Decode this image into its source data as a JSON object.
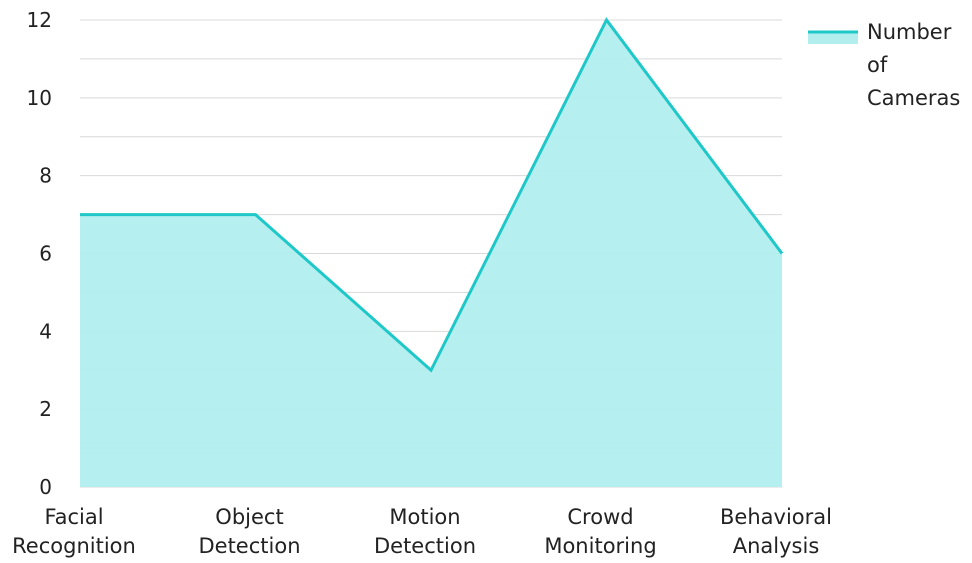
{
  "chart_data": {
    "type": "area",
    "categories": [
      "Facial Recognition",
      "Object Detection",
      "Motion Detection",
      "Crowd Monitoring",
      "Behavioral Analysis"
    ],
    "category_lines": [
      [
        "Facial",
        "Recognition"
      ],
      [
        "Object",
        "Detection"
      ],
      [
        "Motion",
        "Detection"
      ],
      [
        "Crowd",
        "Monitoring"
      ],
      [
        "Behavioral",
        "Analysis"
      ]
    ],
    "series": [
      {
        "name": "Number of Cameras",
        "name_lines": [
          "Number",
          "of",
          "Cameras"
        ],
        "values": [
          7,
          7,
          3,
          12,
          6
        ]
      }
    ],
    "ylim": [
      0,
      12
    ],
    "yticks": [
      0,
      2,
      4,
      6,
      8,
      10,
      12
    ],
    "grid": true,
    "legend": "top-right",
    "colors": {
      "line": "#1fc8c8",
      "fill": "#b2eeee",
      "grid": "#d9d9d9",
      "text": "#222222"
    }
  }
}
